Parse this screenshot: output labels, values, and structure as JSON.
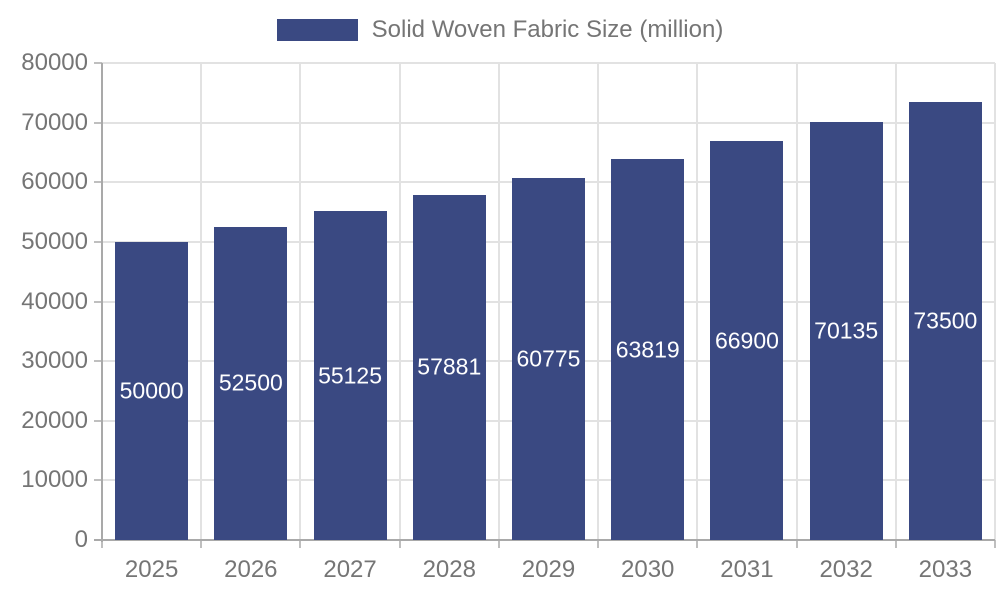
{
  "chart_data": {
    "type": "bar",
    "title": "",
    "legend": "Solid Woven Fabric Size (million)",
    "categories": [
      "2025",
      "2026",
      "2027",
      "2028",
      "2029",
      "2030",
      "2031",
      "2032",
      "2033"
    ],
    "values": [
      50000,
      52500,
      55125,
      57881,
      60775,
      63819,
      66900,
      70135,
      73500
    ],
    "value_labels": [
      "50000",
      "52500",
      "55125",
      "57881",
      "60775",
      "63819",
      "66900",
      "70135",
      "73500"
    ],
    "ylabel": "",
    "xlabel": "",
    "ylim": [
      0,
      80000
    ],
    "ytick_step": 10000,
    "ytick_labels": [
      "0",
      "10000",
      "20000",
      "30000",
      "40000",
      "50000",
      "60000",
      "70000",
      "80000"
    ],
    "grid": "on",
    "legend_position": "top-center",
    "bar_color": "#3A4982",
    "bar_label_color": "#ffffff",
    "axis_text_color": "#757575",
    "axis_line_color": "#a9a9a9",
    "gridline_color": "#e2e2e2",
    "background_color": "#ffffff"
  }
}
